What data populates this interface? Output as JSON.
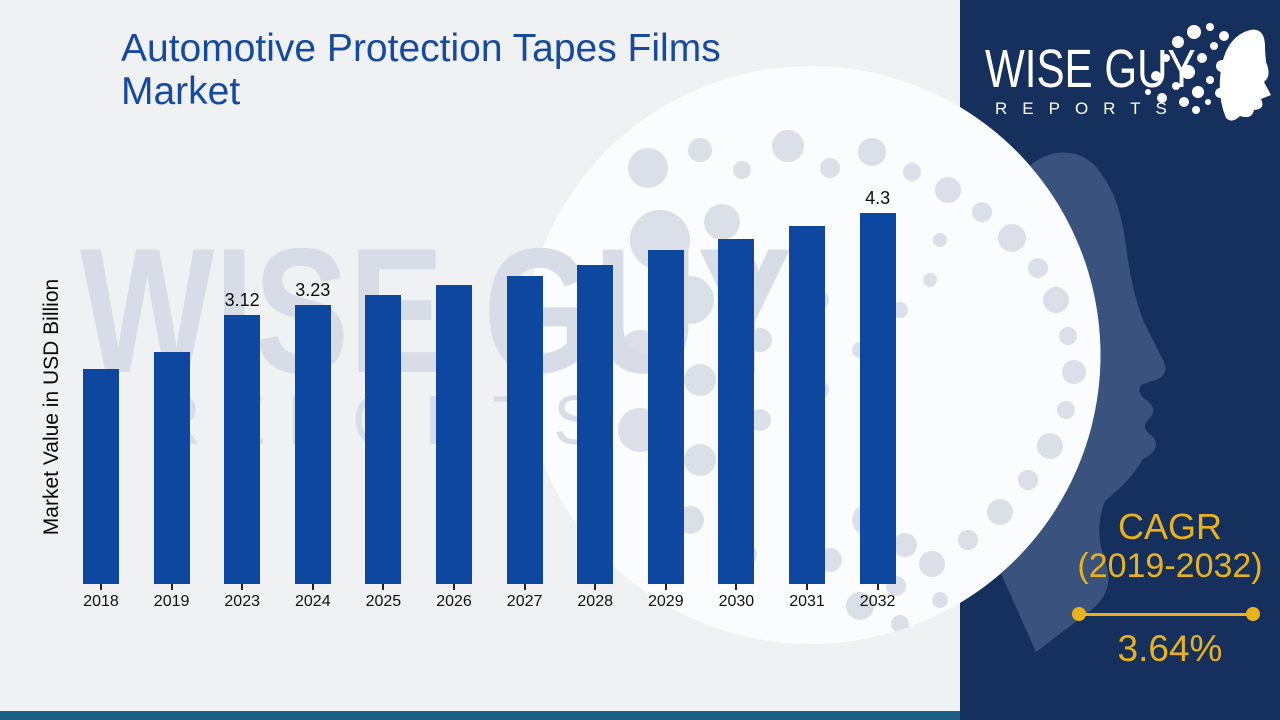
{
  "title": "Automotive Protection Tapes Films Market",
  "watermark": {
    "line1": "WISE GUY",
    "line2": "REPORTS"
  },
  "logo": {
    "name": "WISE GUY",
    "sub": "REPORTS"
  },
  "cagr": {
    "heading": "CAGR",
    "range": "(2019-2032)",
    "value": "3.64%"
  },
  "colors": {
    "bar": "#0e47a0",
    "title": "#164a9e",
    "navy_panel": "#16305e",
    "panel_face": "#3a537e",
    "gold": "#e9b21c",
    "teal_bar": "#1c5f82",
    "watermark": "#d8dce6"
  },
  "chart_data": {
    "type": "bar",
    "title": "Automotive Protection Tapes Films Market",
    "xlabel": "",
    "ylabel": "Market Value in USD Billion",
    "categories": [
      "2018",
      "2019",
      "2023",
      "2024",
      "2025",
      "2026",
      "2027",
      "2028",
      "2029",
      "2030",
      "2031",
      "2032"
    ],
    "values": [
      2.49,
      2.69,
      3.12,
      3.23,
      3.35,
      3.47,
      3.57,
      3.7,
      3.87,
      4.0,
      4.15,
      4.3
    ],
    "point_labels": {
      "2023": "3.12",
      "2024": "3.23",
      "2032": "4.3"
    },
    "ylim": [
      0,
      4.5
    ],
    "grid": false,
    "legend": "none",
    "unit": "USD Billion"
  }
}
